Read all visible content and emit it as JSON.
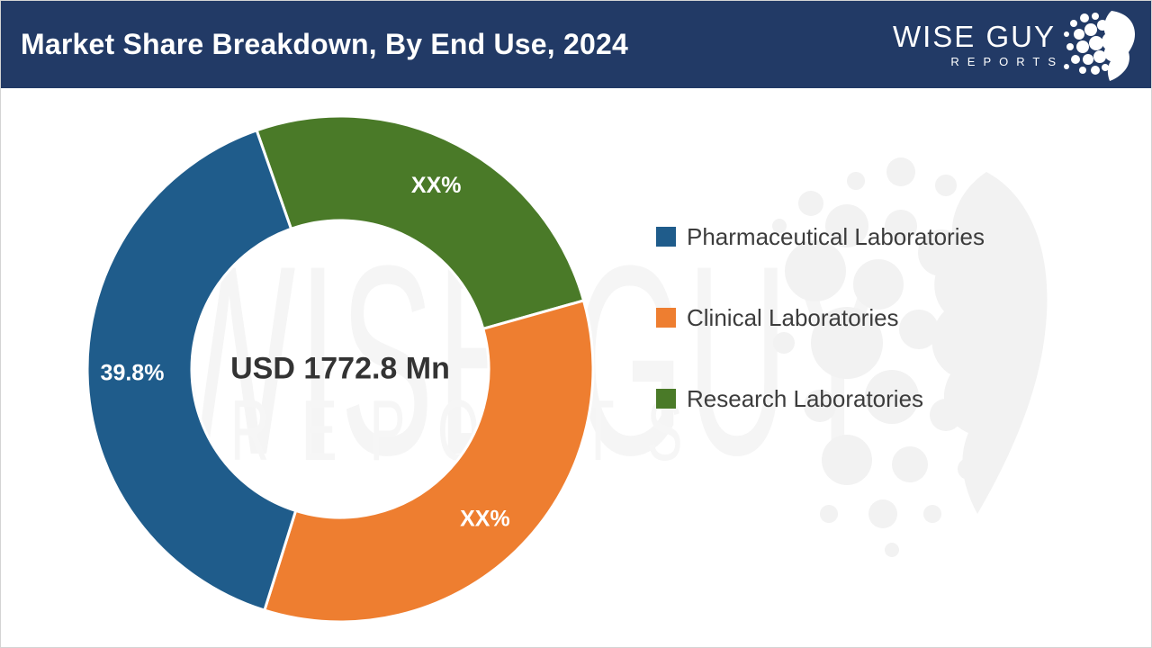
{
  "header": {
    "title": "Market Share Breakdown, By End Use, 2024",
    "logo": {
      "line1": "WISE GUY",
      "line2": "REPORTS"
    }
  },
  "watermark": {
    "line1": "WISE GUY",
    "line2": "REPORTS"
  },
  "chart_data": {
    "type": "pie",
    "subtype": "donut",
    "title": "Market Share Breakdown, By End Use, 2024",
    "center_label": "USD 1772.8 Mn",
    "start_angle_deg_from_top_clockwise": -19.3,
    "segments": [
      {
        "name": "Research Laboratories",
        "value_pct": 26.0,
        "display_label": "XX%",
        "color": "#4A7A28"
      },
      {
        "name": "Clinical Laboratories",
        "value_pct": 34.2,
        "display_label": "XX%",
        "color": "#EE7E30"
      },
      {
        "name": "Pharmaceutical Laboratories",
        "value_pct": 39.8,
        "display_label": "39.8%",
        "color": "#1F5C8B"
      }
    ],
    "legend": {
      "position": "right",
      "items": [
        {
          "label": "Pharmaceutical Laboratories",
          "segment_index": 2
        },
        {
          "label": "Clinical Laboratories",
          "segment_index": 1
        },
        {
          "label": "Research Laboratories",
          "segment_index": 0
        }
      ]
    }
  },
  "colors": {
    "header_background": "#223A66",
    "slice_blue": "#1F5C8B",
    "slice_orange": "#EE7E30",
    "slice_green": "#4A7A28",
    "center_text": "#333333",
    "watermark": "#f5f5f5"
  }
}
